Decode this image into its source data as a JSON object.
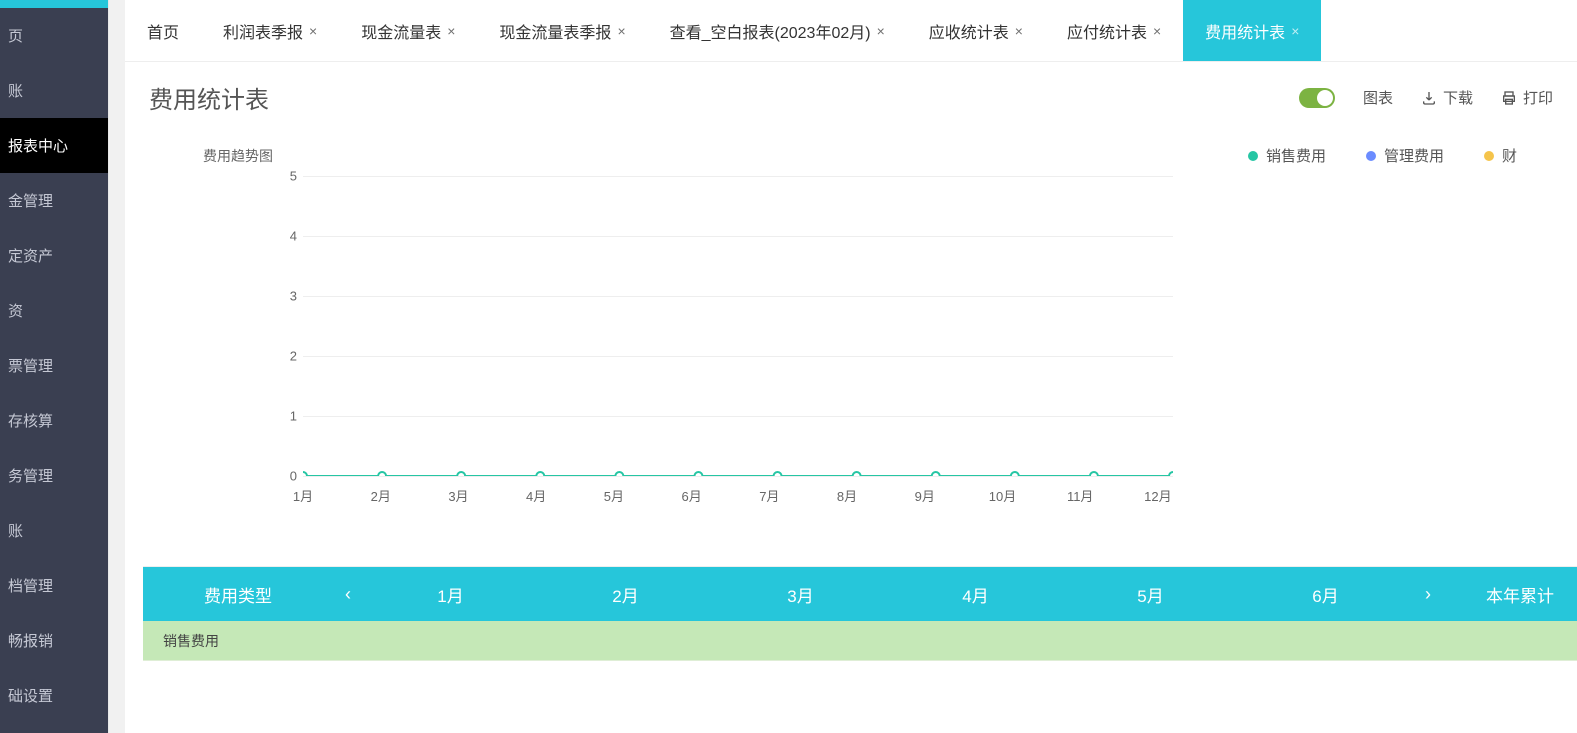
{
  "sidebar": {
    "items": [
      {
        "label": "页"
      },
      {
        "label": "账"
      },
      {
        "label": "报表中心"
      },
      {
        "label": "金管理"
      },
      {
        "label": "定资产"
      },
      {
        "label": "资"
      },
      {
        "label": "票管理"
      },
      {
        "label": "存核算"
      },
      {
        "label": "务管理"
      },
      {
        "label": "账"
      },
      {
        "label": "档管理"
      },
      {
        "label": "畅报销"
      },
      {
        "label": "础设置"
      }
    ],
    "active_index": 2
  },
  "tabs": {
    "items": [
      {
        "label": "首页",
        "closable": false
      },
      {
        "label": "利润表季报",
        "closable": true
      },
      {
        "label": "现金流量表",
        "closable": true
      },
      {
        "label": "现金流量表季报",
        "closable": true
      },
      {
        "label": "查看_空白报表(2023年02月)",
        "closable": true
      },
      {
        "label": "应收统计表",
        "closable": true
      },
      {
        "label": "应付统计表",
        "closable": true
      },
      {
        "label": "费用统计表",
        "closable": true
      }
    ],
    "active_index": 7
  },
  "header": {
    "title": "费用统计表",
    "toggle_label": "图表",
    "download_label": "下载",
    "print_label": "打印"
  },
  "chart": {
    "title": "费用趋势图",
    "type": "line",
    "legend": [
      {
        "label": "销售费用",
        "color": "#26c6a4"
      },
      {
        "label": "管理费用",
        "color": "#6b8cff"
      },
      {
        "label": "财",
        "color": "#f5c44b"
      }
    ],
    "x_labels": [
      "1月",
      "2月",
      "3月",
      "4月",
      "5月",
      "6月",
      "7月",
      "8月",
      "9月",
      "10月",
      "11月",
      "12月"
    ],
    "y_ticks": [
      0,
      1,
      2,
      3,
      4,
      5
    ],
    "ylim": [
      0,
      5
    ],
    "series": [
      {
        "name": "销售费用",
        "color": "#26c6a4",
        "values": [
          0,
          0,
          0,
          0,
          0,
          0,
          0,
          0,
          0,
          0,
          0,
          0
        ]
      }
    ],
    "grid_color": "#eeeeee",
    "marker_radius": 4,
    "line_width": 2
  },
  "table": {
    "type_header": "费用类型",
    "month_headers": [
      "1月",
      "2月",
      "3月",
      "4月",
      "5月",
      "6月"
    ],
    "total_header": "本年累计",
    "rows": [
      {
        "type": "销售费用"
      }
    ],
    "header_bg": "#26c6da",
    "row_bg": "#c5e8b7"
  }
}
